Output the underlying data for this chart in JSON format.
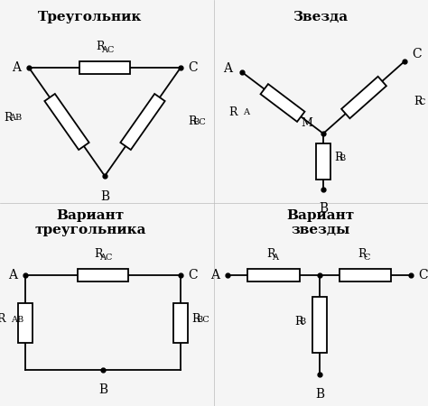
{
  "background_color": "#f5f5f5",
  "line_color": "#000000",
  "title_tl": "Треугольник",
  "title_tr": "Звезда",
  "title_bl1": "Вариант",
  "title_bl2": "треугольника",
  "title_br1": "Вариант",
  "title_br2": "звезды"
}
